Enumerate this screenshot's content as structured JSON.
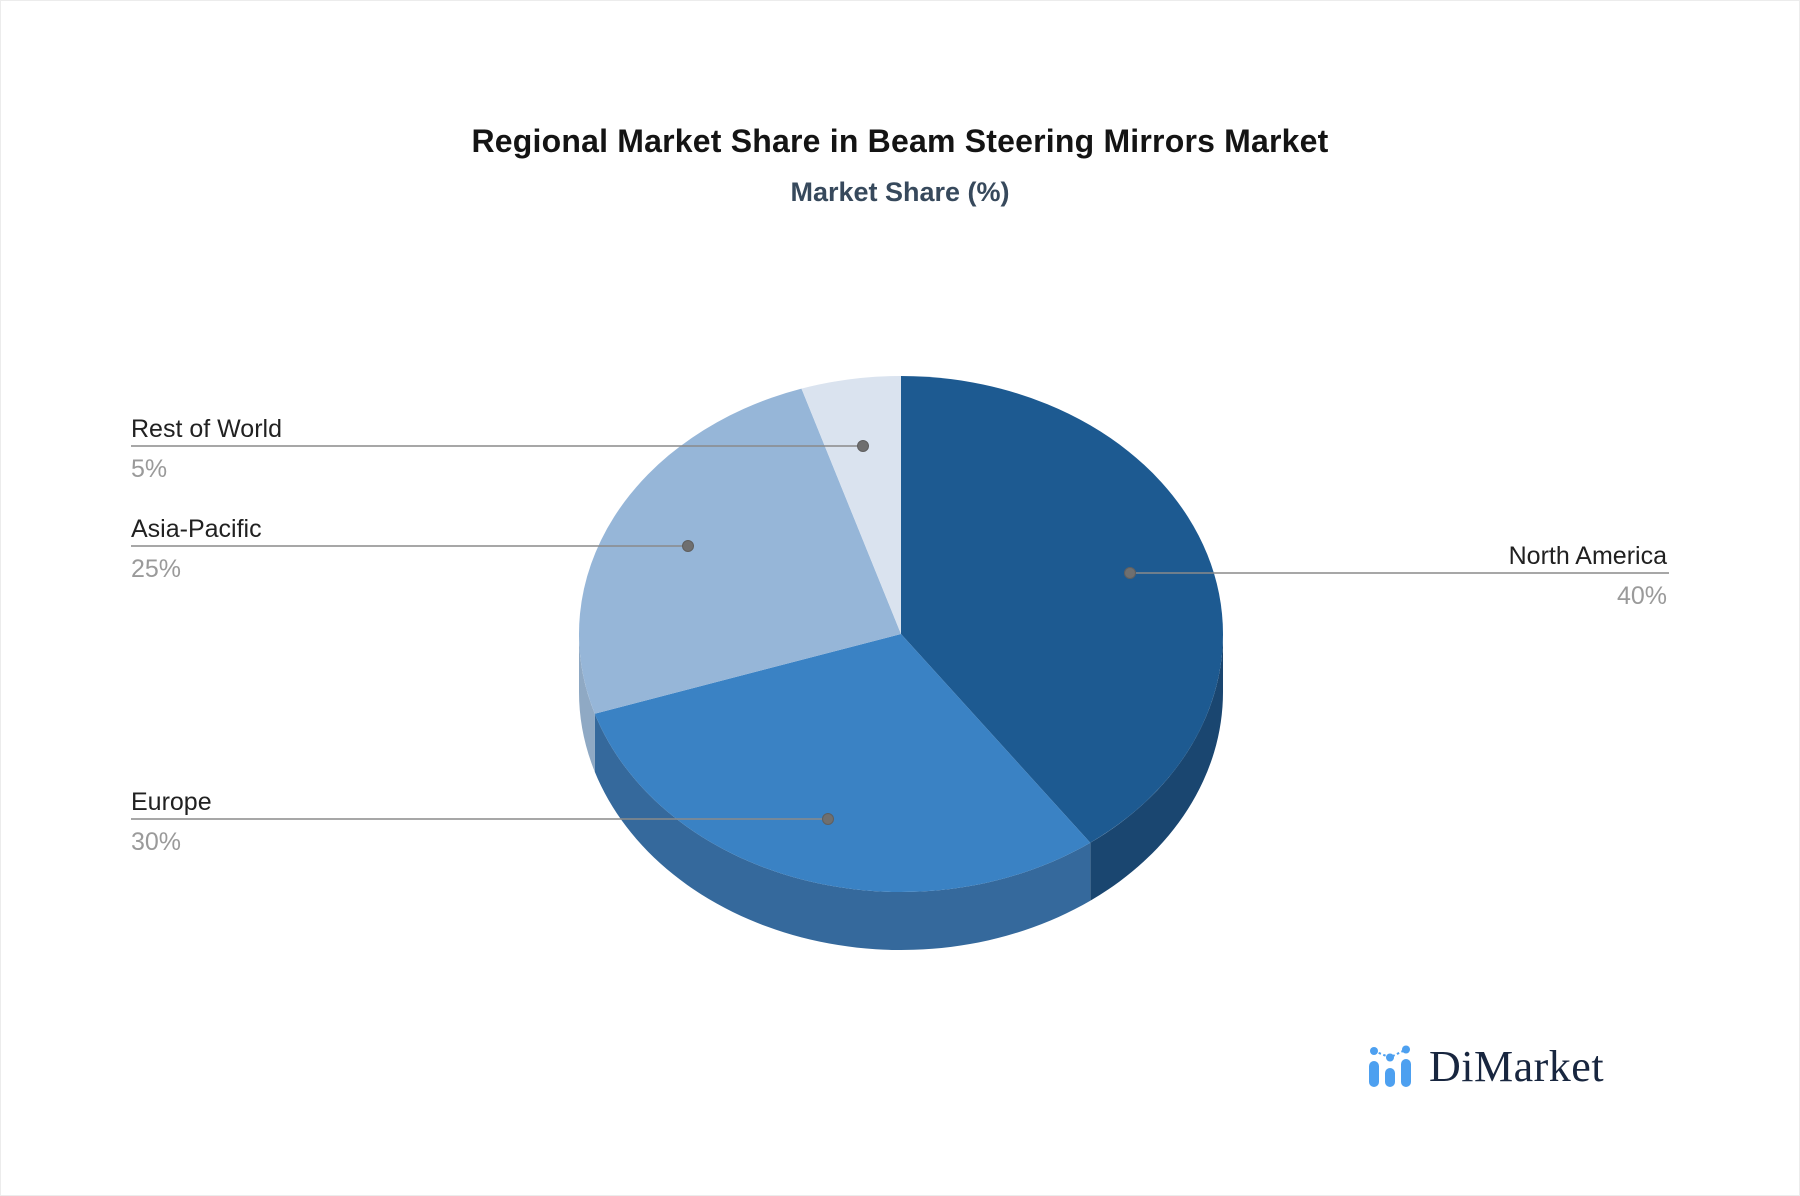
{
  "chart_data": {
    "type": "pie",
    "style": "3d",
    "title": "Regional Market Share in Beam Steering Mirrors Market",
    "subtitle": "Market Share (%)",
    "unit": "%",
    "start_angle": "12-oclock",
    "direction": "clockwise",
    "legend_position": "callout-labels",
    "labels": [
      "North America",
      "Europe",
      "Asia-Pacific",
      "Rest of World"
    ],
    "values": [
      40,
      30,
      25,
      5
    ],
    "display_values": [
      "40%",
      "30%",
      "25%",
      "5%"
    ],
    "colors": [
      "#1D5A91",
      "#3A82C4",
      "#96B6D8",
      "#DAE3EF"
    ],
    "side_colors": [
      "#1A4670",
      "#35699C",
      "#8FA9C4",
      "#C2CFE2"
    ],
    "callout_line_color": "#8A8A8A",
    "callout_dot_color": "#6F6F6F",
    "label_color": "#212121",
    "value_color": "#9A9A9A"
  },
  "branding": {
    "logo_text": "DiMarket",
    "logo_icon": "bar-line-chart-icon",
    "logo_text_color": "#18263F",
    "logo_accent_color": "#4DA0F0"
  }
}
